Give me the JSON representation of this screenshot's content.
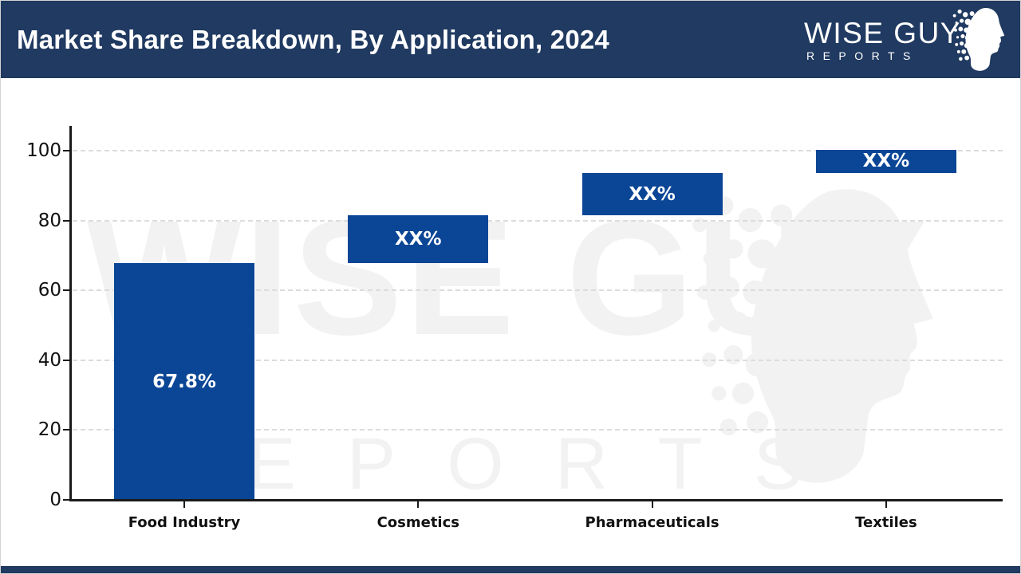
{
  "header": {
    "title": "Market Share Breakdown, By Application, 2024",
    "logo": {
      "line1": "WISE GUY",
      "line2": "REPORTS"
    }
  },
  "watermark": {
    "line1": "WISE GUY",
    "line2": "REPORTS"
  },
  "colors": {
    "header_bg": "#203a61",
    "footer_bg": "#203a61",
    "bar_fill": "#0b4696",
    "bar_label_text": "#ffffff",
    "axis": "#1a1a1a",
    "gridline": "#dcdcdc",
    "watermark": "#f2f2f2",
    "title_text": "#ffffff"
  },
  "chart_data": {
    "type": "bar",
    "subtype": "waterfall",
    "title": "Market Share Breakdown, By Application, 2024",
    "categories": [
      "Food Industry",
      "Cosmetics",
      "Pharmaceuticals",
      "Textiles"
    ],
    "segments": [
      {
        "category": "Food Industry",
        "start": 0,
        "end": 67.8,
        "label": "67.8%"
      },
      {
        "category": "Cosmetics",
        "start": 67.8,
        "end": 81.5,
        "label": "XX%"
      },
      {
        "category": "Pharmaceuticals",
        "start": 81.5,
        "end": 93.6,
        "label": "XX%"
      },
      {
        "category": "Textiles",
        "start": 93.6,
        "end": 100.3,
        "label": "XX%"
      }
    ],
    "value_suffix": "%",
    "xlabel": "",
    "ylabel": "",
    "ylim": [
      0,
      100
    ],
    "yticks": [
      0,
      20,
      40,
      60,
      80,
      100
    ],
    "grid": "horizontal-dashed",
    "legend": "none"
  }
}
